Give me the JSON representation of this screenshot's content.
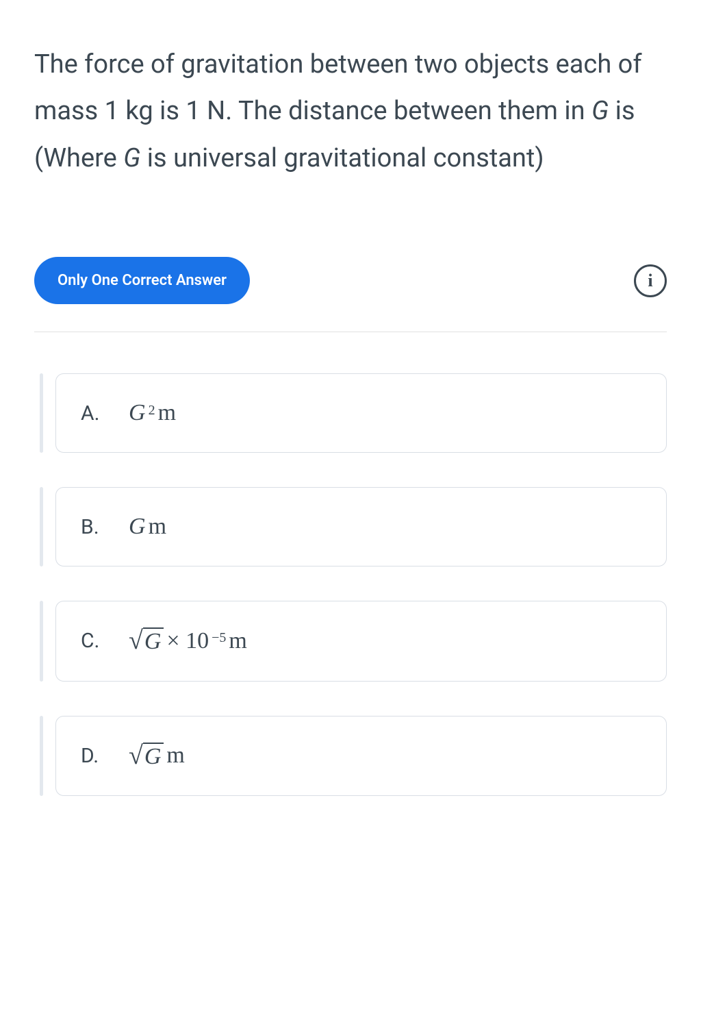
{
  "question": {
    "prefix": "The force of gravitation between two objects each of mass 1 kg is 1 N. The distance between them in ",
    "var1": "G",
    "mid": " is (Where ",
    "var2": "G",
    "suffix": " is universal gravitational constant)"
  },
  "badge": "Only One Correct Answer",
  "info_icon": "i",
  "options": {
    "a": {
      "letter": "A.",
      "var": "G",
      "sup": "2",
      "unit": " m"
    },
    "b": {
      "letter": "B.",
      "var": "G",
      "unit": " m"
    },
    "c": {
      "letter": "C.",
      "sqrt_arg": "G",
      "times": " × 10",
      "exp": "−5",
      "unit": " m"
    },
    "d": {
      "letter": "D.",
      "sqrt_arg": "G",
      "unit": " m"
    }
  },
  "colors": {
    "badge_bg": "#1a73e8",
    "text": "#3c4852",
    "border": "#d9dee5",
    "divider": "#e0e0e0",
    "option_bar": "#e3e8ee"
  }
}
